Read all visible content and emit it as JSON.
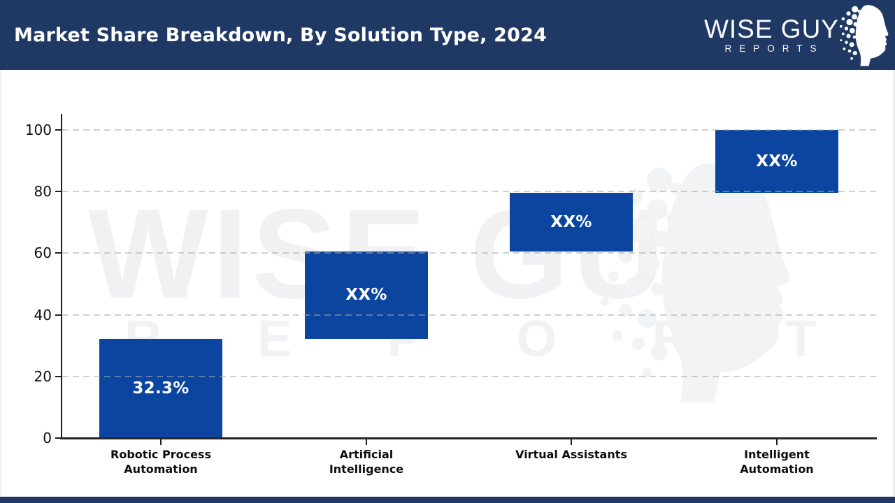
{
  "header": {
    "title": "Market Share Breakdown, By Solution Type, 2024",
    "brand": {
      "line1": "WISE GUY",
      "line2": "REPORTS"
    }
  },
  "watermark": {
    "line1": "WISE GUY",
    "line2": "R E P O R T S"
  },
  "colors": {
    "header_bg": "#1f3864",
    "footer_bg": "#1f3864",
    "bar": "#0b45a0",
    "bar_label": "#ffffff",
    "gridline": "#c8c8c8",
    "axis": "#1c1c1c",
    "watermark": "#f1f1f4"
  },
  "chart_data": {
    "type": "bar",
    "subtype": "waterfall",
    "title": "Market Share Breakdown, By Solution Type, 2024",
    "xlabel": "",
    "ylabel": "",
    "ylim": [
      0,
      105
    ],
    "yticks": [
      0,
      20,
      40,
      60,
      80,
      100
    ],
    "grid": "horizontal-dashed",
    "legend": "none",
    "bar_color": "#0b45a0",
    "categories": [
      "Robotic Process\nAutomation",
      "Artificial\nIntelligence",
      "Virtual Assistants",
      "Intelligent\nAutomation"
    ],
    "segments": [
      {
        "category": "Robotic Process\nAutomation",
        "start": 0,
        "end": 32.3,
        "label": "32.3%"
      },
      {
        "category": "Artificial\nIntelligence",
        "start": 32.3,
        "end": 60.5,
        "label": "XX%"
      },
      {
        "category": "Virtual Assistants",
        "start": 60.5,
        "end": 79.5,
        "label": "XX%"
      },
      {
        "category": "Intelligent\nAutomation",
        "start": 79.5,
        "end": 100,
        "label": "XX%"
      }
    ]
  }
}
